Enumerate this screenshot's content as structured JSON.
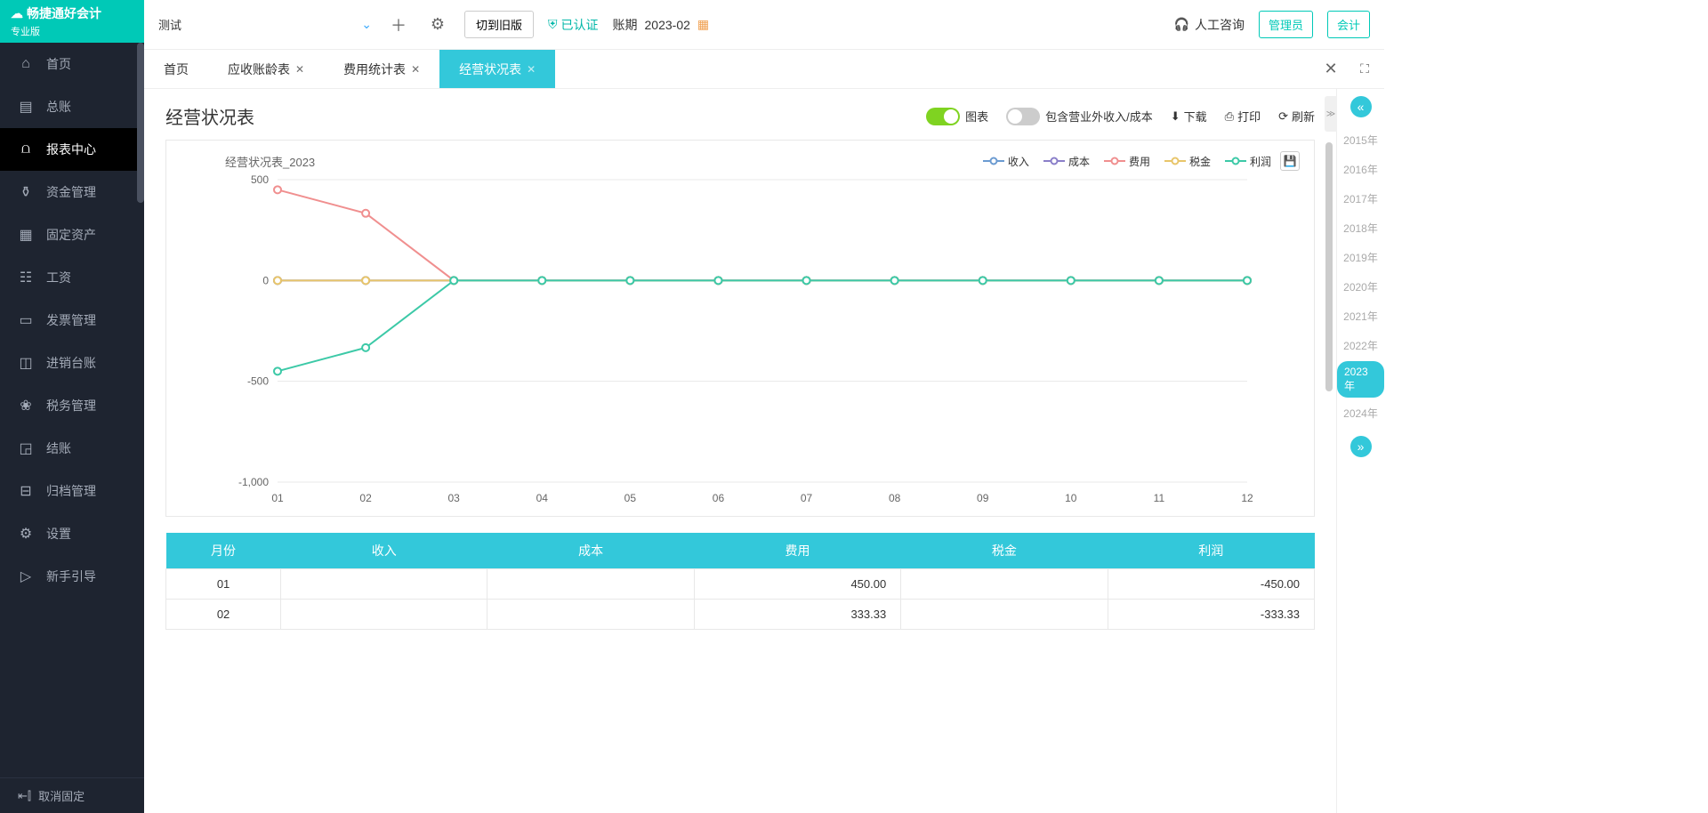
{
  "brand": {
    "name": "畅捷通好会计",
    "edition": "专业版"
  },
  "sidebar": {
    "items": [
      {
        "label": "首页",
        "icon": "⌂"
      },
      {
        "label": "总账",
        "icon": "▤"
      },
      {
        "label": "报表中心",
        "icon": "⩍"
      },
      {
        "label": "资金管理",
        "icon": "⚱"
      },
      {
        "label": "固定资产",
        "icon": "▦"
      },
      {
        "label": "工资",
        "icon": "☷"
      },
      {
        "label": "发票管理",
        "icon": "▭"
      },
      {
        "label": "进销台账",
        "icon": "◫"
      },
      {
        "label": "税务管理",
        "icon": "❀"
      },
      {
        "label": "结账",
        "icon": "◲"
      },
      {
        "label": "归档管理",
        "icon": "⊟"
      },
      {
        "label": "设置",
        "icon": "⚙"
      },
      {
        "label": "新手引导",
        "icon": "▷"
      }
    ],
    "activeIndex": 2,
    "footer": "取消固定"
  },
  "topbar": {
    "company": "测试",
    "switchOld": "切到旧版",
    "verified": "已认证",
    "periodLabel": "账期",
    "periodValue": "2023-02",
    "support": "人工咨询",
    "roles": [
      "管理员",
      "会计"
    ]
  },
  "tabs": {
    "items": [
      {
        "label": "首页",
        "closable": false
      },
      {
        "label": "应收账龄表",
        "closable": true
      },
      {
        "label": "费用统计表",
        "closable": true
      },
      {
        "label": "经营状况表",
        "closable": true
      }
    ],
    "activeIndex": 3
  },
  "report": {
    "title": "经营状况表",
    "chartToggleLabel": "图表",
    "chartToggleOn": true,
    "includeLabel": "包含营业外收入/成本",
    "includeOn": false,
    "actions": {
      "download": "下载",
      "print": "打印",
      "refresh": "刷新"
    }
  },
  "chart": {
    "title": "经营状况表_2023",
    "series": [
      {
        "name": "收入",
        "color": "#6b9bd1",
        "values": [
          0,
          0,
          0,
          0,
          0,
          0,
          0,
          0,
          0,
          0,
          0,
          0
        ]
      },
      {
        "name": "成本",
        "color": "#8a7fc9",
        "values": [
          0,
          0,
          0,
          0,
          0,
          0,
          0,
          0,
          0,
          0,
          0,
          0
        ]
      },
      {
        "name": "费用",
        "color": "#f08f8f",
        "values": [
          450,
          333.33,
          0,
          0,
          0,
          0,
          0,
          0,
          0,
          0,
          0,
          0
        ]
      },
      {
        "name": "税金",
        "color": "#e8c56a",
        "values": [
          0,
          0,
          0,
          0,
          0,
          0,
          0,
          0,
          0,
          0,
          0,
          0
        ]
      },
      {
        "name": "利润",
        "color": "#3cc9a7",
        "values": [
          -450,
          -333.33,
          0,
          0,
          0,
          0,
          0,
          0,
          0,
          0,
          0,
          0
        ]
      }
    ],
    "xLabels": [
      "01",
      "02",
      "03",
      "04",
      "05",
      "06",
      "07",
      "08",
      "09",
      "10",
      "11",
      "12"
    ],
    "yTicks": [
      500,
      0,
      -500,
      -1000
    ],
    "ylim": [
      -1000,
      500
    ],
    "grid_color": "#e8e8e8",
    "marker_radius": 4,
    "line_width": 2,
    "font_size": 12,
    "background": "#ffffff"
  },
  "table": {
    "columns": [
      "月份",
      "收入",
      "成本",
      "费用",
      "税金",
      "利润"
    ],
    "colAlign": [
      "center",
      "right",
      "right",
      "right",
      "right",
      "right"
    ],
    "colWidths": [
      "10%",
      "18%",
      "18%",
      "18%",
      "18%",
      "18%"
    ],
    "rows": [
      [
        "01",
        "",
        "",
        "450.00",
        "",
        "-450.00"
      ],
      [
        "02",
        "",
        "",
        "333.33",
        "",
        "-333.33"
      ]
    ],
    "header_bg": "#33c8da",
    "header_color": "#ffffff",
    "border_color": "#e8e8e8"
  },
  "yearRail": {
    "years": [
      "2015年",
      "2016年",
      "2017年",
      "2018年",
      "2019年",
      "2020年",
      "2021年",
      "2022年",
      "2023年",
      "2024年"
    ],
    "activeIndex": 8
  }
}
